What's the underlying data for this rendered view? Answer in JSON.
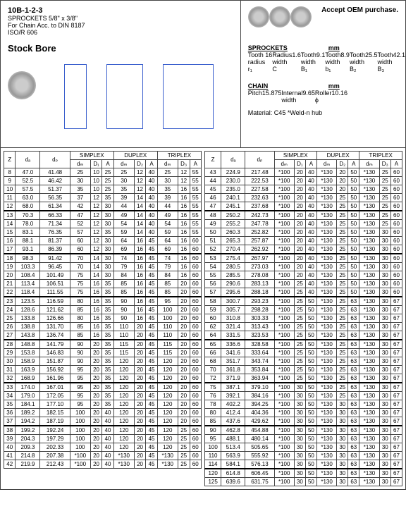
{
  "header": {
    "code": "10B-1-2-3",
    "desc1": "SPROCKETS 5/8\" x 3/8\"",
    "desc2": "For Chain Acc. to DIN 8187",
    "desc3": "ISO/R 606",
    "title": "Stock Bore"
  },
  "right": {
    "accept": "Accept OEM purchase.",
    "sprockets_h": "SPROCKETS",
    "mm": "mm",
    "specs": [
      {
        "l": "Tooth radius r₁",
        "v": "16"
      },
      {
        "l": "Radius width C",
        "v": "1.6"
      },
      {
        "l": "Tooth width B₁",
        "v": "9.1"
      },
      {
        "l": "Tooth width b₁",
        "v": "8.9"
      },
      {
        "l": "Tooth width B₂",
        "v": "25.5"
      },
      {
        "l": "Tooth width B₃",
        "v": "42.1"
      }
    ],
    "chain_h": "CHAIN",
    "chain": [
      {
        "l": "Pitch",
        "v": "15.875"
      },
      {
        "l": "Internal width",
        "v": "9.65"
      },
      {
        "l": "Roller  ϕ",
        "v": "10.16"
      }
    ],
    "material": "Material: C45 *Weld-n hub"
  },
  "cols": {
    "z": "Z",
    "da": "dₐ",
    "dp": "dₚ",
    "dm": "dₘ",
    "d1": "D₁",
    "a": "A",
    "d2": "D₂",
    "d3": "D₃",
    "simplex": "SIMPLEX",
    "duplex": "DUPLEX",
    "triplex": "TRIPLEX"
  },
  "left_groups": [
    [
      [
        8,
        "47.0",
        "41.48",
        25,
        10,
        25,
        25,
        12,
        40,
        25,
        12,
        55
      ],
      [
        9,
        "52.5",
        "46.42",
        30,
        10,
        25,
        30,
        12,
        40,
        30,
        12,
        55
      ],
      [
        10,
        "57.5",
        "51.37",
        35,
        10,
        25,
        35,
        12,
        40,
        35,
        16,
        55
      ],
      [
        11,
        "63.0",
        "56.35",
        37,
        12,
        35,
        39,
        14,
        40,
        39,
        16,
        55
      ],
      [
        12,
        "68.0",
        "61.34",
        42,
        12,
        30,
        44,
        14,
        40,
        44,
        16,
        55
      ]
    ],
    [
      [
        13,
        "70.3",
        "66.33",
        47,
        12,
        30,
        49,
        14,
        40,
        49,
        16,
        55
      ],
      [
        14,
        "78.0",
        "71.34",
        52,
        12,
        30,
        54,
        14,
        40,
        54,
        16,
        55
      ],
      [
        15,
        "83.1",
        "76.35",
        57,
        12,
        35,
        59,
        14,
        40,
        59,
        16,
        55
      ],
      [
        16,
        "88.1",
        "81.37",
        60,
        12,
        30,
        64,
        16,
        45,
        64,
        16,
        60
      ],
      [
        17,
        "93.1",
        "86.39",
        60,
        12,
        30,
        69,
        16,
        45,
        69,
        16,
        60
      ]
    ],
    [
      [
        18,
        "98.3",
        "91.42",
        70,
        14,
        30,
        74,
        16,
        45,
        74,
        16,
        60
      ],
      [
        19,
        "103.3",
        "96.45",
        70,
        14,
        30,
        79,
        16,
        45,
        79,
        16,
        60
      ],
      [
        20,
        "108.4",
        "101.49",
        75,
        14,
        30,
        84,
        16,
        45,
        84,
        16,
        60
      ],
      [
        21,
        "113.4",
        "106.51",
        75,
        16,
        35,
        85,
        16,
        45,
        85,
        20,
        60
      ],
      [
        22,
        "118.4",
        "111.55",
        75,
        16,
        35,
        85,
        16,
        45,
        85,
        20,
        60
      ]
    ],
    [
      [
        23,
        "123.5",
        "116.59",
        80,
        16,
        35,
        90,
        16,
        45,
        95,
        20,
        60
      ],
      [
        24,
        "128.6",
        "121.62",
        85,
        16,
        35,
        90,
        16,
        45,
        100,
        20,
        60
      ],
      [
        25,
        "133.8",
        "126.66",
        80,
        16,
        35,
        90,
        16,
        45,
        100,
        20,
        60
      ],
      [
        26,
        "138.8",
        "131.70",
        85,
        16,
        35,
        110,
        20,
        45,
        110,
        20,
        60
      ],
      [
        27,
        "143.8",
        "136.74",
        85,
        16,
        35,
        110,
        20,
        45,
        110,
        20,
        60
      ]
    ],
    [
      [
        28,
        "148.8",
        "141.79",
        90,
        20,
        35,
        115,
        20,
        45,
        115,
        20,
        60
      ],
      [
        29,
        "153.8",
        "146.83",
        90,
        20,
        35,
        115,
        20,
        45,
        115,
        20,
        60
      ],
      [
        30,
        "158.9",
        "151.87",
        90,
        20,
        35,
        120,
        20,
        45,
        120,
        20,
        60
      ],
      [
        31,
        "163.9",
        "156.92",
        95,
        20,
        35,
        120,
        20,
        45,
        120,
        20,
        60
      ],
      [
        32,
        "168.9",
        "161.96",
        95,
        20,
        35,
        120,
        20,
        45,
        120,
        20,
        60
      ]
    ],
    [
      [
        33,
        "174.0",
        "167.01",
        95,
        20,
        35,
        120,
        20,
        45,
        120,
        20,
        60
      ],
      [
        34,
        "179.0",
        "172.05",
        95,
        20,
        35,
        120,
        20,
        45,
        120,
        20,
        60
      ],
      [
        35,
        "184.1",
        "177.10",
        95,
        20,
        35,
        120,
        20,
        45,
        120,
        20,
        60
      ],
      [
        36,
        "189.2",
        "182.15",
        100,
        20,
        40,
        120,
        20,
        45,
        120,
        20,
        60
      ],
      [
        37,
        "194.2",
        "187.19",
        100,
        20,
        40,
        120,
        20,
        45,
        120,
        20,
        60
      ]
    ],
    [
      [
        38,
        "199.2",
        "192.24",
        100,
        20,
        40,
        120,
        20,
        45,
        120,
        25,
        60
      ],
      [
        39,
        "204.3",
        "197.29",
        100,
        20,
        40,
        120,
        20,
        45,
        120,
        25,
        60
      ],
      [
        40,
        "209.3",
        "202.33",
        100,
        20,
        40,
        120,
        20,
        45,
        120,
        25,
        60
      ],
      [
        41,
        "214.8",
        "207.38",
        "*100",
        20,
        40,
        "*130",
        20,
        45,
        "*130",
        25,
        60
      ],
      [
        42,
        "219.9",
        "212.43",
        "*100",
        20,
        40,
        "*130",
        20,
        45,
        "*130",
        25,
        60
      ]
    ]
  ],
  "right_groups": [
    [
      [
        43,
        "224.9",
        "217.48",
        "*100",
        20,
        40,
        "*130",
        20,
        50,
        "*130",
        25,
        60
      ],
      [
        44,
        "230.0",
        "222.53",
        "*100",
        20,
        40,
        "*130",
        20,
        50,
        "*130",
        25,
        60
      ],
      [
        45,
        "235.0",
        "227.58",
        "*100",
        20,
        40,
        "*130",
        20,
        50,
        "*130",
        25,
        60
      ],
      [
        46,
        "240.1",
        "232.63",
        "*100",
        20,
        40,
        "*130",
        25,
        50,
        "*130",
        25,
        60
      ],
      [
        47,
        "245.1",
        "237.68",
        "*100",
        20,
        40,
        "*130",
        25,
        50,
        "*130",
        25,
        60
      ]
    ],
    [
      [
        48,
        "250.2",
        "242.73",
        "*100",
        20,
        40,
        "*130",
        25,
        50,
        "*130",
        25,
        60
      ],
      [
        49,
        "255.2",
        "247.78",
        "*100",
        20,
        40,
        "*130",
        25,
        50,
        "*130",
        25,
        60
      ],
      [
        50,
        "260.3",
        "252.82",
        "*100",
        20,
        40,
        "*130",
        25,
        50,
        "*130",
        30,
        60
      ],
      [
        51,
        "265.3",
        "257.87",
        "*100",
        20,
        40,
        "*130",
        25,
        50,
        "*130",
        30,
        60
      ],
      [
        52,
        "270.4",
        "262.92",
        "*100",
        20,
        40,
        "*130",
        25,
        50,
        "*130",
        30,
        60
      ]
    ],
    [
      [
        53,
        "275.4",
        "267.97",
        "*100",
        20,
        40,
        "*130",
        25,
        50,
        "*130",
        30,
        60
      ],
      [
        54,
        "280.5",
        "273.03",
        "*100",
        20,
        40,
        "*130",
        25,
        50,
        "*130",
        30,
        60
      ],
      [
        55,
        "285.5",
        "278.08",
        "*100",
        20,
        40,
        "*130",
        25,
        50,
        "*130",
        30,
        60
      ],
      [
        56,
        "290.6",
        "283.13",
        "*100",
        25,
        40,
        "*130",
        25,
        50,
        "*130",
        30,
        60
      ],
      [
        57,
        "295.6",
        "288.18",
        "*100",
        25,
        40,
        "*130",
        25,
        50,
        "*130",
        30,
        60
      ]
    ],
    [
      [
        58,
        "300.7",
        "293.23",
        "*100",
        25,
        50,
        "*130",
        25,
        63,
        "*130",
        30,
        67
      ],
      [
        59,
        "305.7",
        "298.28",
        "*100",
        25,
        50,
        "*130",
        25,
        63,
        "*130",
        30,
        67
      ],
      [
        60,
        "310.8",
        "303.33",
        "*100",
        25,
        50,
        "*130",
        25,
        63,
        "*130",
        30,
        67
      ],
      [
        62,
        "321.4",
        "313.43",
        "*100",
        25,
        50,
        "*130",
        25,
        63,
        "*130",
        30,
        67
      ],
      [
        64,
        "331.5",
        "323.53",
        "*100",
        25,
        50,
        "*130",
        25,
        63,
        "*130",
        30,
        67
      ]
    ],
    [
      [
        65,
        "336.6",
        "328.58",
        "*100",
        25,
        50,
        "*130",
        25,
        63,
        "*130",
        30,
        67
      ],
      [
        66,
        "341.6",
        "333.64",
        "*100",
        25,
        50,
        "*130",
        25,
        63,
        "*130",
        30,
        67
      ],
      [
        68,
        "351.7",
        "343.74",
        "*100",
        25,
        50,
        "*130",
        25,
        63,
        "*130",
        30,
        67
      ],
      [
        70,
        "361.8",
        "353.84",
        "*100",
        25,
        50,
        "*130",
        25,
        63,
        "*130",
        30,
        67
      ],
      [
        72,
        "371.9",
        "363.94",
        "*100",
        25,
        50,
        "*130",
        25,
        63,
        "*130",
        30,
        67
      ]
    ],
    [
      [
        75,
        "387.1",
        "379.10",
        "*100",
        30,
        50,
        "*130",
        25,
        63,
        "*130",
        30,
        67
      ],
      [
        76,
        "392.1",
        "384.16",
        "*100",
        30,
        50,
        "*130",
        25,
        63,
        "*130",
        30,
        67
      ],
      [
        78,
        "402.2",
        "394.25",
        "*100",
        30,
        50,
        "*130",
        30,
        63,
        "*130",
        30,
        67
      ],
      [
        80,
        "412.4",
        "404.36",
        "*100",
        30,
        50,
        "*130",
        30,
        63,
        "*130",
        30,
        67
      ],
      [
        85,
        "437.6",
        "429.62",
        "*100",
        30,
        50,
        "*130",
        30,
        63,
        "*130",
        30,
        67
      ]
    ],
    [
      [
        90,
        "462.8",
        "454.88",
        "*100",
        30,
        50,
        "*130",
        30,
        63,
        "*130",
        30,
        67
      ],
      [
        95,
        "488.1",
        "480.14",
        "*100",
        30,
        50,
        "*130",
        30,
        63,
        "*130",
        30,
        67
      ],
      [
        100,
        "513.4",
        "505.65",
        "*100",
        30,
        50,
        "*130",
        30,
        63,
        "*130",
        30,
        67
      ],
      [
        110,
        "563.9",
        "555.92",
        "*100",
        30,
        50,
        "*130",
        30,
        63,
        "*130",
        30,
        67
      ],
      [
        114,
        "584.1",
        "576.13",
        "*100",
        30,
        50,
        "*130",
        30,
        63,
        "*130",
        30,
        67
      ]
    ],
    [
      [
        120,
        "614.8",
        "606.45",
        "*100",
        30,
        50,
        "*130",
        30,
        63,
        "*130",
        30,
        67
      ],
      [
        125,
        "639.6",
        "631.75",
        "*100",
        30,
        50,
        "*130",
        30,
        63,
        "*130",
        30,
        67
      ]
    ]
  ]
}
